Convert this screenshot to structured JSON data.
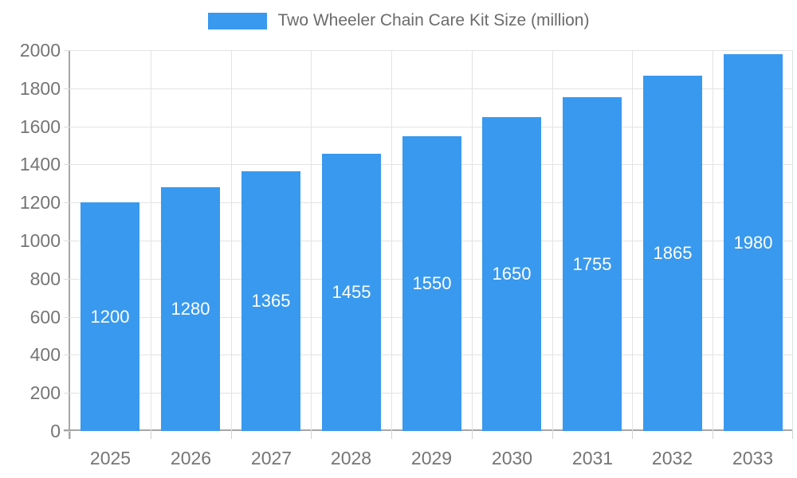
{
  "chart_data": {
    "type": "bar",
    "title": "Two Wheeler Chain Care Kit Size (million)",
    "legend": [
      "Two Wheeler Chain Care Kit Size (million)"
    ],
    "legend_position": "top-center",
    "categories": [
      "2025",
      "2026",
      "2027",
      "2028",
      "2029",
      "2030",
      "2031",
      "2032",
      "2033"
    ],
    "values": [
      1200,
      1280,
      1365,
      1455,
      1550,
      1650,
      1755,
      1865,
      1980
    ],
    "xlabel": "",
    "ylabel": "",
    "ylim": [
      0,
      2000
    ],
    "ytick_step": 200,
    "yticks": [
      0,
      200,
      400,
      600,
      800,
      1000,
      1200,
      1400,
      1600,
      1800,
      2000
    ],
    "grid": true,
    "value_labels": "inside-center",
    "colors": {
      "bar": "#3999EE",
      "value_label": "#FFFFFF",
      "axis_line": "#A6A6A6",
      "gridline": "#E3E3E3",
      "tick": "#D2D2D2",
      "tick_label": "#757575",
      "legend_text": "#6B6B6B",
      "background": "#FFFFFF"
    }
  }
}
